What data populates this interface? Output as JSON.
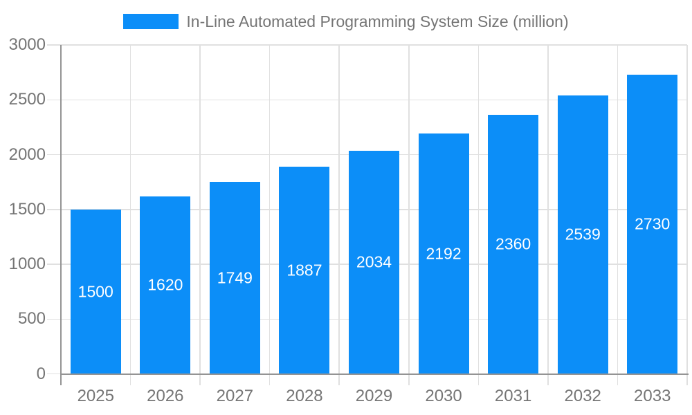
{
  "chart_data": {
    "type": "bar",
    "title": "",
    "legend": "In-Line Automated Programming System Size (million)",
    "legend_position": "top-center",
    "categories": [
      "2025",
      "2026",
      "2027",
      "2028",
      "2029",
      "2030",
      "2031",
      "2032",
      "2033"
    ],
    "values": [
      1500,
      1620,
      1749,
      1887,
      2034,
      2192,
      2360,
      2539,
      2730
    ],
    "bar_value_labels": [
      "1500",
      "1620",
      "1749",
      "1887",
      "2034",
      "2192",
      "2360",
      "2539",
      "2730"
    ],
    "xlabel": "",
    "ylabel": "",
    "ylim": [
      0,
      3000
    ],
    "yticks": [
      0,
      500,
      1000,
      1500,
      2000,
      2500,
      3000
    ],
    "grid": true,
    "value_labels_inside_bars": true,
    "colors": {
      "bar": "#0c8ef8",
      "bar_label": "#ffffff",
      "axis_text": "#757575",
      "gridline": "#e0e0e0",
      "axis_line": "#949494",
      "background": "#ffffff"
    }
  }
}
